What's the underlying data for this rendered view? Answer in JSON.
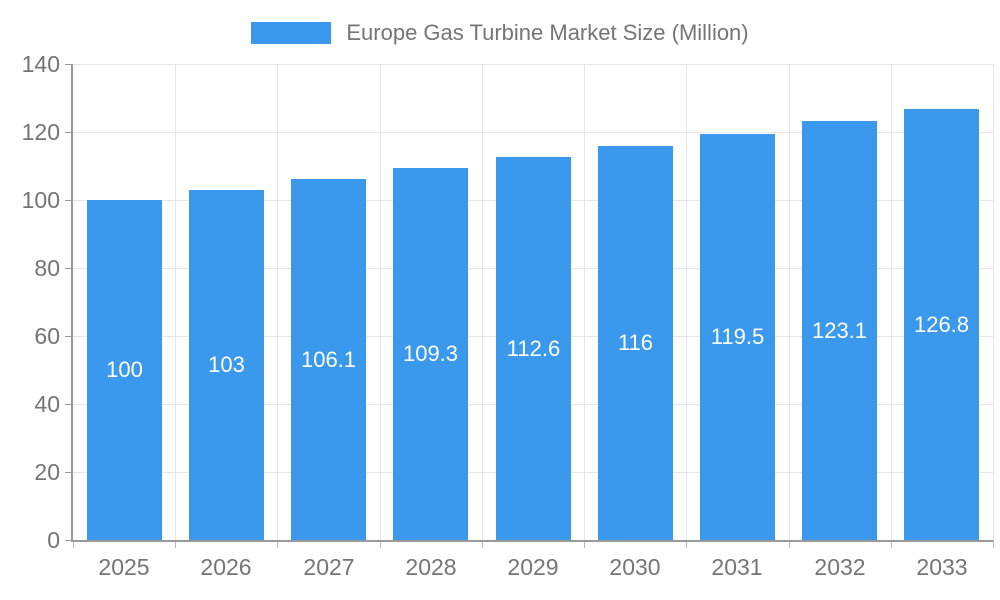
{
  "legend": {
    "label": "Europe Gas Turbine Market Size (Million)"
  },
  "chart_data": {
    "type": "bar",
    "title": "Europe Gas Turbine Market Size (Million)",
    "categories": [
      "2025",
      "2026",
      "2027",
      "2028",
      "2029",
      "2030",
      "2031",
      "2032",
      "2033"
    ],
    "values": [
      100,
      103,
      106.1,
      109.3,
      112.6,
      116,
      119.5,
      123.1,
      126.8
    ],
    "value_labels": [
      "100",
      "103",
      "106.1",
      "109.3",
      "112.6",
      "116",
      "119.5",
      "123.1",
      "126.8"
    ],
    "xlabel": "",
    "ylabel": "",
    "ylim": [
      0,
      140
    ],
    "ytick_step": 20,
    "ytick_labels": [
      "0",
      "20",
      "40",
      "60",
      "80",
      "100",
      "120",
      "140"
    ],
    "grid": true,
    "legend_position": "top"
  },
  "colors": {
    "bar": "#3A99EC",
    "grid": "#E6E6E6",
    "axis": "#999999",
    "tick": "#BBBBBB",
    "text": "#757575",
    "value_text": "#FFFFFF"
  }
}
